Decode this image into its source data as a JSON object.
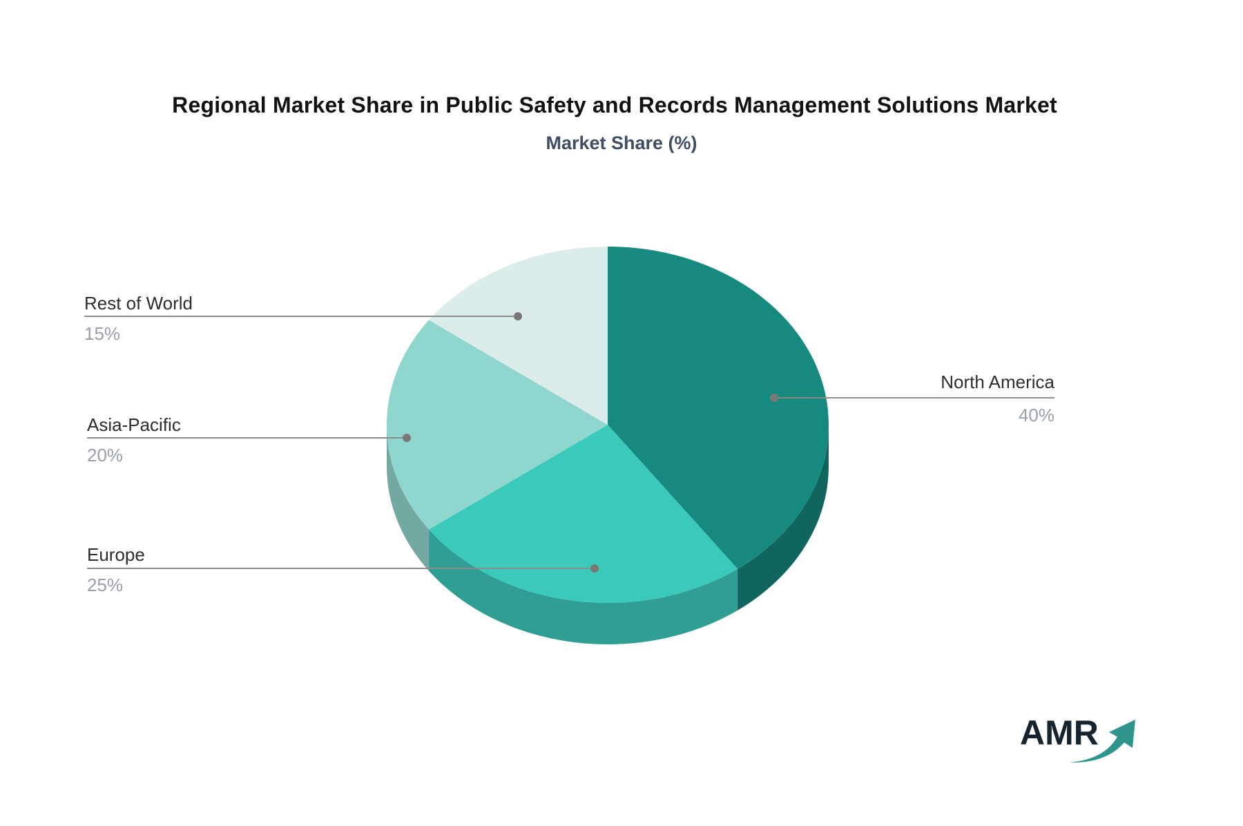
{
  "title": "Regional Market Share in Public Safety and Records Management Solutions Market",
  "subtitle": "Market Share (%)",
  "chart_data": {
    "type": "pie",
    "style": "3d",
    "start_angle": "12-o-clock-clockwise",
    "unit": "%",
    "categories": [
      "North America",
      "Europe",
      "Asia-Pacific",
      "Rest of World"
    ],
    "values": [
      40,
      25,
      20,
      15
    ],
    "legend": "none",
    "labels_position": "outside-callouts",
    "slices": [
      {
        "label": "North America",
        "value": 40,
        "pct_label": "40%",
        "color": "#178a7f",
        "side_color": "#10665e"
      },
      {
        "label": "Europe",
        "value": 25,
        "pct_label": "25%",
        "color": "#3bcaba",
        "side_color": "#2f9e93"
      },
      {
        "label": "Asia-Pacific",
        "value": 20,
        "pct_label": "20%",
        "color": "#8ed6ce",
        "side_color": "#74a9a1"
      },
      {
        "label": "Rest of World",
        "value": 15,
        "pct_label": "15%",
        "color": "#dcecea",
        "side_color": "#b9d6d2"
      }
    ]
  },
  "logo": {
    "text": "AMR",
    "text_color": "#17242e",
    "arrow_icon_color": "#2f958c"
  },
  "colors": {
    "background": "#ffffff",
    "title": "#121212",
    "subtitle": "#3f4d63",
    "label_text": "#2d2d2d",
    "percent_text": "#9aa0a6",
    "leader_line": "#8c8c8c",
    "leader_dot": "#787878"
  }
}
